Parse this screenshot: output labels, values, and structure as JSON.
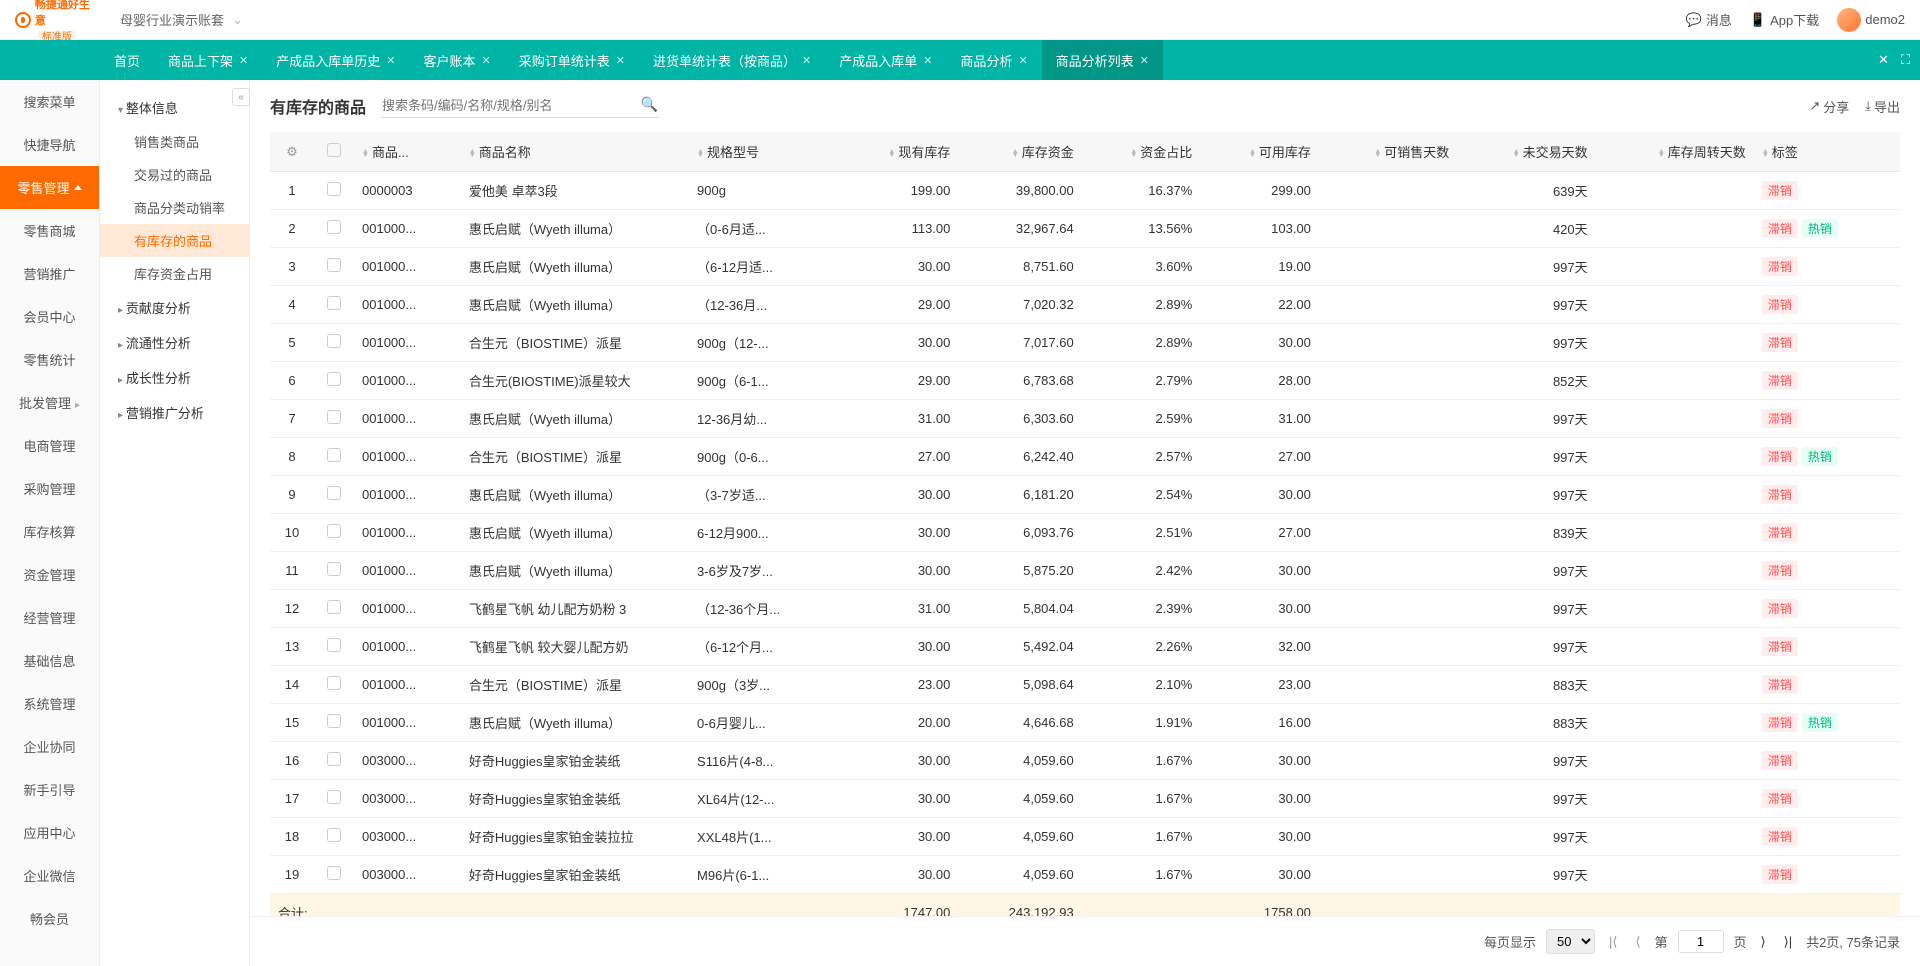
{
  "brand": {
    "name": "畅捷通好生意",
    "edition": "标准版"
  },
  "accountSelector": "母婴行业演示账套",
  "topRight": {
    "messages": "消息",
    "appDownload": "App下载",
    "user": "demo2"
  },
  "tabs": [
    {
      "label": "首页",
      "close": false
    },
    {
      "label": "商品上下架",
      "close": true
    },
    {
      "label": "产成品入库单历史",
      "close": true
    },
    {
      "label": "客户账本",
      "close": true
    },
    {
      "label": "采购订单统计表",
      "close": true
    },
    {
      "label": "进货单统计表（按商品）",
      "close": true
    },
    {
      "label": "产成品入库单",
      "close": true
    },
    {
      "label": "商品分析",
      "close": true
    },
    {
      "label": "商品分析列表",
      "close": true,
      "active": true
    }
  ],
  "leftNav": [
    {
      "label": "搜索菜单"
    },
    {
      "label": "快捷导航"
    },
    {
      "label": "零售管理",
      "active": true
    },
    {
      "label": "零售商城"
    },
    {
      "label": "营销推广"
    },
    {
      "label": "会员中心"
    },
    {
      "label": "零售统计"
    },
    {
      "label": "批发管理",
      "expandable": true
    },
    {
      "label": "电商管理"
    },
    {
      "label": "采购管理"
    },
    {
      "label": "库存核算"
    },
    {
      "label": "资金管理"
    },
    {
      "label": "经营管理"
    },
    {
      "label": "基础信息"
    },
    {
      "label": "系统管理"
    },
    {
      "label": "企业协同"
    },
    {
      "label": "新手引导"
    },
    {
      "label": "应用中心"
    },
    {
      "label": "企业微信"
    },
    {
      "label": "畅会员"
    }
  ],
  "subNav": {
    "groups": [
      {
        "label": "整体信息",
        "children": [
          {
            "label": "销售类商品"
          },
          {
            "label": "交易过的商品"
          },
          {
            "label": "商品分类动销率"
          },
          {
            "label": "有库存的商品",
            "active": true
          },
          {
            "label": "库存资金占用"
          }
        ]
      },
      {
        "label": "贡献度分析",
        "collapsed": true
      },
      {
        "label": "流通性分析",
        "collapsed": true
      },
      {
        "label": "成长性分析",
        "collapsed": true
      },
      {
        "label": "营销推广分析",
        "collapsed": true
      }
    ]
  },
  "content": {
    "title": "有库存的商品",
    "searchPlaceholder": "搜索条码/编码/名称/规格/别名",
    "share": "分享",
    "export": "导出"
  },
  "columns": [
    "",
    "",
    "商品...",
    "商品名称",
    "规格型号",
    "现有库存",
    "库存资金",
    "资金占比",
    "可用库存",
    "可销售天数",
    "未交易天数",
    "库存周转天数",
    "标签"
  ],
  "rows": [
    {
      "n": 1,
      "code": "0000003",
      "name": "爱他美 卓萃3段",
      "spec": "900g",
      "stock": "199.00",
      "fund": "39,800.00",
      "pct": "16.37%",
      "avail": "299.00",
      "sell": "",
      "notx": "639天",
      "cycle": "",
      "tags": [
        "滞销"
      ]
    },
    {
      "n": 2,
      "code": "001000...",
      "name": "惠氏启赋（Wyeth illuma）",
      "spec": "（0-6月适...",
      "stock": "113.00",
      "fund": "32,967.64",
      "pct": "13.56%",
      "avail": "103.00",
      "sell": "",
      "notx": "420天",
      "cycle": "",
      "tags": [
        "滞销",
        "热销"
      ]
    },
    {
      "n": 3,
      "code": "001000...",
      "name": "惠氏启赋（Wyeth illuma）",
      "spec": "（6-12月适...",
      "stock": "30.00",
      "fund": "8,751.60",
      "pct": "3.60%",
      "avail": "19.00",
      "sell": "",
      "notx": "997天",
      "cycle": "",
      "tags": [
        "滞销"
      ]
    },
    {
      "n": 4,
      "code": "001000...",
      "name": "惠氏启赋（Wyeth illuma）",
      "spec": "（12-36月...",
      "stock": "29.00",
      "fund": "7,020.32",
      "pct": "2.89%",
      "avail": "22.00",
      "sell": "",
      "notx": "997天",
      "cycle": "",
      "tags": [
        "滞销"
      ]
    },
    {
      "n": 5,
      "code": "001000...",
      "name": "合生元（BIOSTIME）派星",
      "spec": "900g（12-...",
      "stock": "30.00",
      "fund": "7,017.60",
      "pct": "2.89%",
      "avail": "30.00",
      "sell": "",
      "notx": "997天",
      "cycle": "",
      "tags": [
        "滞销"
      ]
    },
    {
      "n": 6,
      "code": "001000...",
      "name": "合生元(BIOSTIME)派星较大",
      "spec": "900g（6-1...",
      "stock": "29.00",
      "fund": "6,783.68",
      "pct": "2.79%",
      "avail": "28.00",
      "sell": "",
      "notx": "852天",
      "cycle": "",
      "tags": [
        "滞销"
      ]
    },
    {
      "n": 7,
      "code": "001000...",
      "name": "惠氏启赋（Wyeth illuma）",
      "spec": "12-36月幼...",
      "stock": "31.00",
      "fund": "6,303.60",
      "pct": "2.59%",
      "avail": "31.00",
      "sell": "",
      "notx": "997天",
      "cycle": "",
      "tags": [
        "滞销"
      ]
    },
    {
      "n": 8,
      "code": "001000...",
      "name": "合生元（BIOSTIME）派星",
      "spec": "900g（0-6...",
      "stock": "27.00",
      "fund": "6,242.40",
      "pct": "2.57%",
      "avail": "27.00",
      "sell": "",
      "notx": "997天",
      "cycle": "",
      "tags": [
        "滞销",
        "热销"
      ]
    },
    {
      "n": 9,
      "code": "001000...",
      "name": "惠氏启赋（Wyeth illuma）",
      "spec": "（3-7岁适...",
      "stock": "30.00",
      "fund": "6,181.20",
      "pct": "2.54%",
      "avail": "30.00",
      "sell": "",
      "notx": "997天",
      "cycle": "",
      "tags": [
        "滞销"
      ]
    },
    {
      "n": 10,
      "code": "001000...",
      "name": "惠氏启赋（Wyeth illuma）",
      "spec": "6-12月900...",
      "stock": "30.00",
      "fund": "6,093.76",
      "pct": "2.51%",
      "avail": "27.00",
      "sell": "",
      "notx": "839天",
      "cycle": "",
      "tags": [
        "滞销"
      ]
    },
    {
      "n": 11,
      "code": "001000...",
      "name": "惠氏启赋（Wyeth illuma）",
      "spec": "3-6岁及7岁...",
      "stock": "30.00",
      "fund": "5,875.20",
      "pct": "2.42%",
      "avail": "30.00",
      "sell": "",
      "notx": "997天",
      "cycle": "",
      "tags": [
        "滞销"
      ]
    },
    {
      "n": 12,
      "code": "001000...",
      "name": "飞鹤星飞帆 幼儿配方奶粉 3",
      "spec": "（12-36个月...",
      "stock": "31.00",
      "fund": "5,804.04",
      "pct": "2.39%",
      "avail": "30.00",
      "sell": "",
      "notx": "997天",
      "cycle": "",
      "tags": [
        "滞销"
      ]
    },
    {
      "n": 13,
      "code": "001000...",
      "name": "飞鹤星飞帆 较大婴儿配方奶",
      "spec": "（6-12个月...",
      "stock": "30.00",
      "fund": "5,492.04",
      "pct": "2.26%",
      "avail": "32.00",
      "sell": "",
      "notx": "997天",
      "cycle": "",
      "tags": [
        "滞销"
      ]
    },
    {
      "n": 14,
      "code": "001000...",
      "name": "合生元（BIOSTIME）派星",
      "spec": "900g（3岁...",
      "stock": "23.00",
      "fund": "5,098.64",
      "pct": "2.10%",
      "avail": "23.00",
      "sell": "",
      "notx": "883天",
      "cycle": "",
      "tags": [
        "滞销"
      ]
    },
    {
      "n": 15,
      "code": "001000...",
      "name": "惠氏启赋（Wyeth illuma）",
      "spec": "0-6月婴儿...",
      "stock": "20.00",
      "fund": "4,646.68",
      "pct": "1.91%",
      "avail": "16.00",
      "sell": "",
      "notx": "883天",
      "cycle": "",
      "tags": [
        "滞销",
        "热销"
      ]
    },
    {
      "n": 16,
      "code": "003000...",
      "name": "好奇Huggies皇家铂金装纸",
      "spec": "S116片(4-8...",
      "stock": "30.00",
      "fund": "4,059.60",
      "pct": "1.67%",
      "avail": "30.00",
      "sell": "",
      "notx": "997天",
      "cycle": "",
      "tags": [
        "滞销"
      ]
    },
    {
      "n": 17,
      "code": "003000...",
      "name": "好奇Huggies皇家铂金装纸",
      "spec": "XL64片(12-...",
      "stock": "30.00",
      "fund": "4,059.60",
      "pct": "1.67%",
      "avail": "30.00",
      "sell": "",
      "notx": "997天",
      "cycle": "",
      "tags": [
        "滞销"
      ]
    },
    {
      "n": 18,
      "code": "003000...",
      "name": "好奇Huggies皇家铂金装拉拉",
      "spec": "XXL48片(1...",
      "stock": "30.00",
      "fund": "4,059.60",
      "pct": "1.67%",
      "avail": "30.00",
      "sell": "",
      "notx": "997天",
      "cycle": "",
      "tags": [
        "滞销"
      ]
    },
    {
      "n": 19,
      "code": "003000...",
      "name": "好奇Huggies皇家铂金装纸",
      "spec": "M96片(6-1...",
      "stock": "30.00",
      "fund": "4,059.60",
      "pct": "1.67%",
      "avail": "30.00",
      "sell": "",
      "notx": "997天",
      "cycle": "",
      "tags": [
        "滞销"
      ]
    }
  ],
  "totals": {
    "label": "合计:",
    "stock": "1747.00",
    "fund": "243,192.93",
    "avail": "1758.00"
  },
  "pager": {
    "perPageLabel": "每页显示",
    "perPage": "50",
    "pagePrefix": "第",
    "page": "1",
    "pageSuffix": "页",
    "summary": "共2页, 75条记录"
  }
}
